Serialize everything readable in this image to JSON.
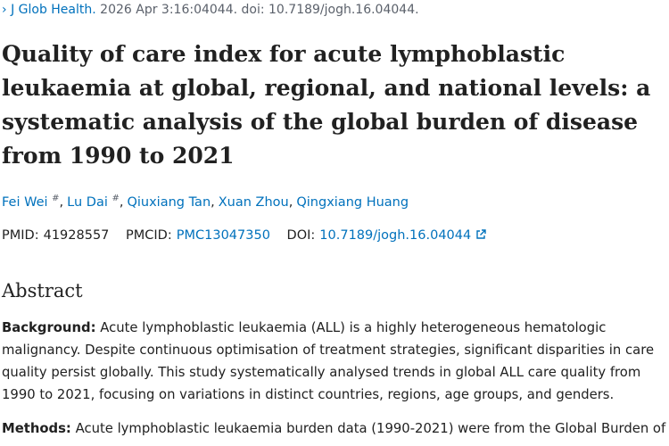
{
  "citation": {
    "journal": "J Glob Health.",
    "details": "2026 Apr 3:16:04044. doi: 10.7189/jogh.16.04044."
  },
  "title": "Quality of care index for acute lymphoblastic leukaemia at global, regional, and national levels: a systematic analysis of the global burden of disease from 1990 to 2021",
  "authors": {
    "separator": ",",
    "list": [
      {
        "name": "Fei Wei",
        "note": "#"
      },
      {
        "name": "Lu Dai",
        "note": "#"
      },
      {
        "name": "Qiuxiang Tan"
      },
      {
        "name": "Xuan Zhou"
      },
      {
        "name": "Qingxiang Huang"
      }
    ]
  },
  "identifiers": {
    "pmid_label": "PMID:",
    "pmid": "41928557",
    "pmcid_label": "PMCID:",
    "pmcid": "PMC13047350",
    "doi_label": "DOI:",
    "doi": "10.7189/jogh.16.04044"
  },
  "abstract": {
    "heading": "Abstract",
    "sections": [
      {
        "label": "Background:",
        "text": "Acute lymphoblastic leukaemia (ALL) is a highly heterogeneous hematologic malignancy. Despite continuous optimisation of treatment strategies, significant disparities in care quality persist globally. This study systematically analysed trends in global ALL care quality from 1990 to 2021, focusing on variations in distinct countries, regions, age groups, and genders."
      },
      {
        "label": "Methods:",
        "text": "Acute lymphoblastic leukaemia burden data (1990-2021) were from the Global Burden of"
      }
    ]
  }
}
